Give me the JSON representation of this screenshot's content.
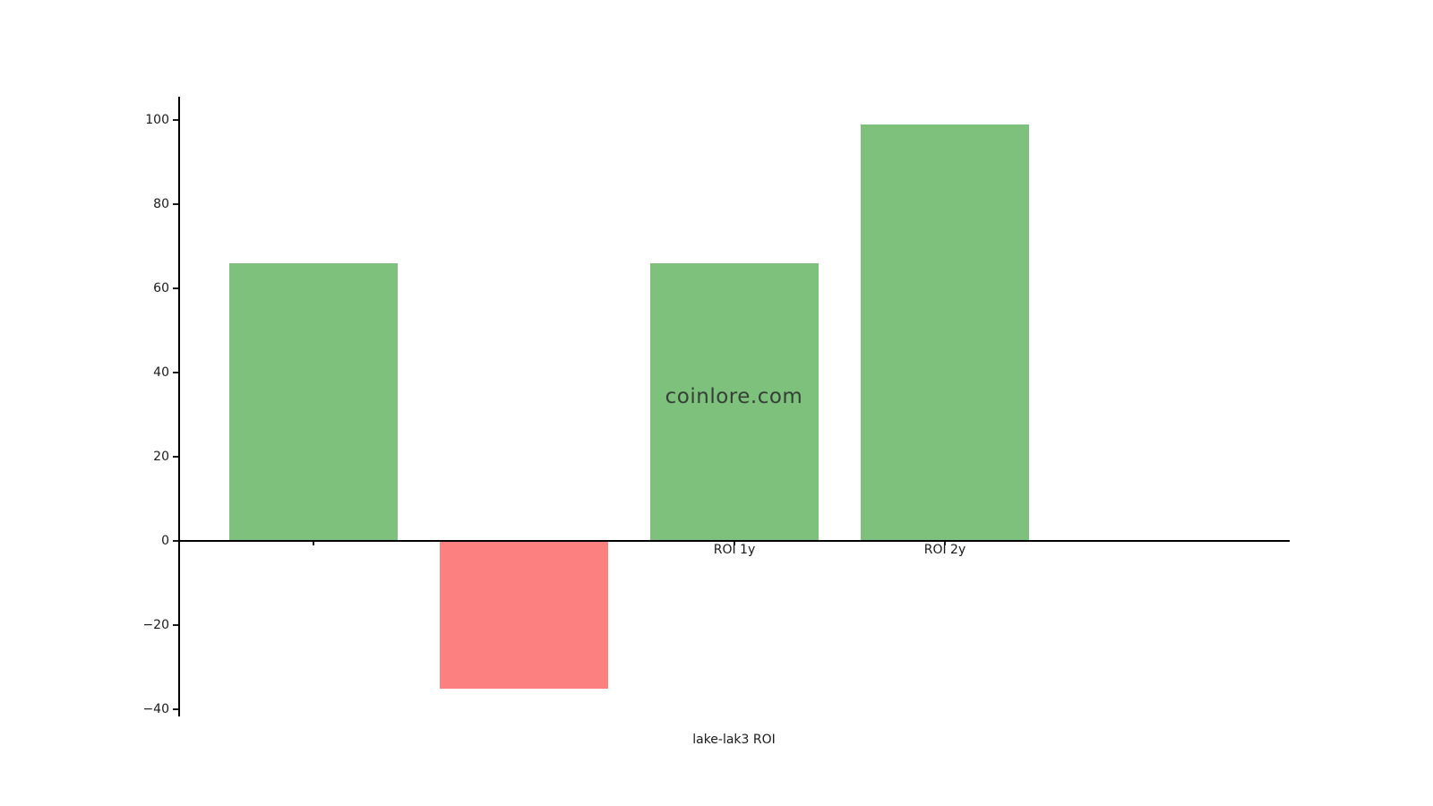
{
  "watermark": {
    "text": "coinlore.com"
  },
  "chart_data": {
    "type": "bar",
    "title": "lake-lak3 ROI",
    "xlabel": "lake-lak3 ROI",
    "ylabel": "",
    "categories": [
      "",
      "",
      "ROI 1y",
      "ROI 2y"
    ],
    "values": [
      66,
      -35,
      66,
      99
    ],
    "series": [
      {
        "name": "ROI",
        "values": [
          66,
          -35,
          66,
          99
        ]
      }
    ],
    "bar_colors": [
      "#7dc17d",
      "#fd8080",
      "#7dc17d",
      "#7dc17d"
    ],
    "positive_color": "#7dc17d",
    "negative_color": "#fd8080",
    "yticks": [
      100,
      80,
      60,
      40,
      20,
      0,
      -20,
      -40
    ],
    "ytick_labels": [
      "100",
      "80",
      "60",
      "40",
      "20",
      "0",
      "−20",
      "−40"
    ],
    "ylim": [
      -41,
      105
    ],
    "grid": false,
    "legend_position": "none",
    "axis_color": "#000000",
    "text_color": "#1a1a1a"
  }
}
